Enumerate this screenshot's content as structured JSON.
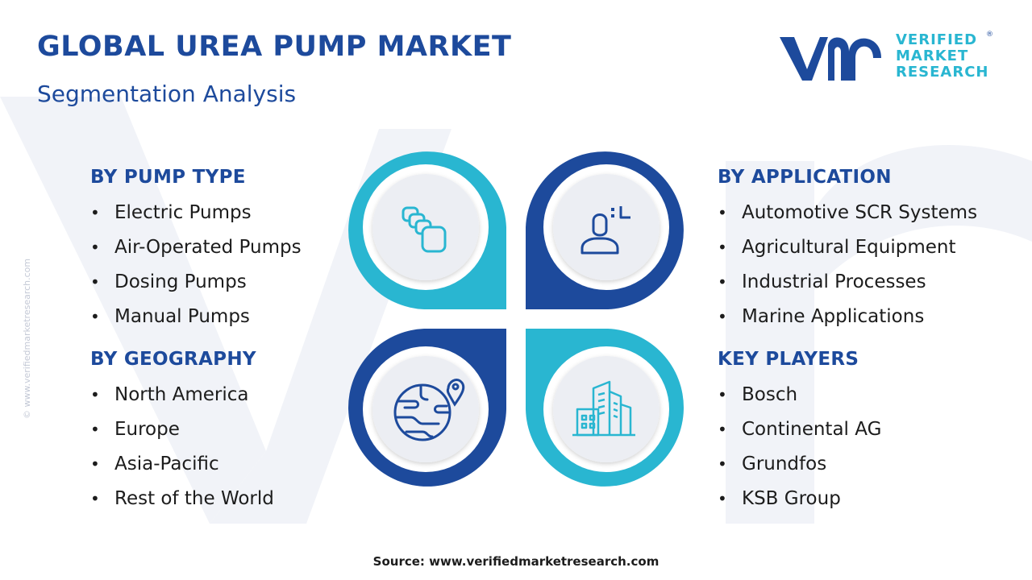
{
  "header": {
    "title": "GLOBAL UREA PUMP MARKET",
    "subtitle": "Segmentation Analysis"
  },
  "logo": {
    "line1": "VERIFIED",
    "line2": "MARKET",
    "line3": "RESEARCH",
    "registered": "®"
  },
  "sidebar_text": "© www.verifiedmarketresearch.com",
  "segments": {
    "pump_type": {
      "heading": "BY PUMP TYPE",
      "items": [
        "Electric Pumps",
        "Air-Operated Pumps",
        "Dosing Pumps",
        "Manual Pumps"
      ]
    },
    "geography": {
      "heading": "BY GEOGRAPHY",
      "items": [
        "North America",
        "Europe",
        "Asia-Pacific",
        "Rest of the World"
      ]
    },
    "application": {
      "heading": "BY APPLICATION",
      "items": [
        "Automotive SCR Systems",
        "Agricultural Equipment",
        "Industrial Processes",
        "Marine Applications"
      ]
    },
    "key_players": {
      "heading": "KEY PLAYERS",
      "items": [
        "Bosch",
        "Continental AG",
        "Grundfos",
        "KSB Group"
      ]
    }
  },
  "icons": {
    "top_left": "stacked-cards-icon",
    "top_right": "user-icon",
    "bottom_left": "globe-location-icon",
    "bottom_right": "city-buildings-icon"
  },
  "colors": {
    "brand_dark": "#1d4a9c",
    "brand_light": "#29b6d1"
  },
  "source": "Source: www.verifiedmarketresearch.com"
}
